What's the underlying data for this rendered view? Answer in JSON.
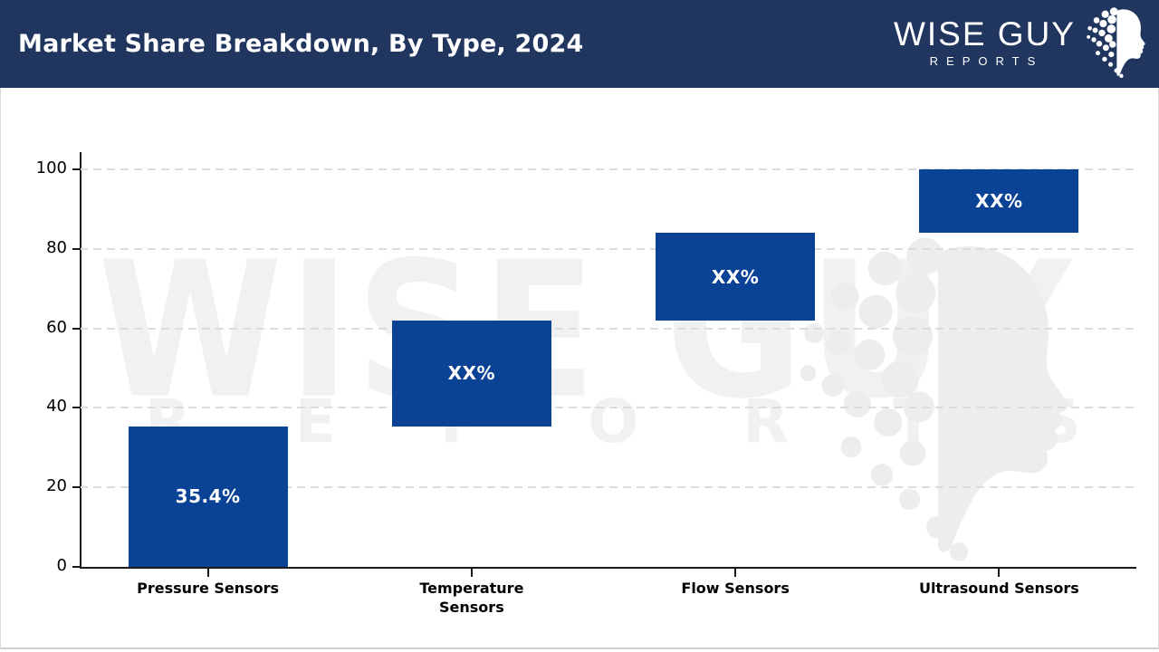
{
  "header": {
    "title": "Market Share Breakdown, By Type, 2024",
    "logo_line1": "WISE GUY",
    "logo_line2": "REPORTS"
  },
  "watermark": {
    "line1": "WISE GUY",
    "line2": "R E P O R T S"
  },
  "colors": {
    "header_bg": "#21365f",
    "bar": "#0a4296",
    "bar_label": "#ffffff",
    "grid": "#dcdcdc",
    "watermark": "#f1f1f1"
  },
  "chart_data": {
    "type": "bar",
    "subtype": "waterfall",
    "title": "Market Share Breakdown, By Type, 2024",
    "categories": [
      "Pressure Sensors",
      "Temperature\nSensors",
      "Flow Sensors",
      "Ultrasound Sensors"
    ],
    "segments": [
      {
        "category": "Pressure Sensors",
        "start": 0,
        "end": 35.4,
        "label": "35.4%"
      },
      {
        "category": "Temperature\nSensors",
        "start": 35.4,
        "end": 62,
        "label": "XX%"
      },
      {
        "category": "Flow Sensors",
        "start": 62,
        "end": 84,
        "label": "XX%"
      },
      {
        "category": "Ultrasound Sensors",
        "start": 84,
        "end": 100,
        "label": "XX%"
      }
    ],
    "ylim": [
      0,
      105
    ],
    "yticks": [
      0,
      20,
      40,
      60,
      80,
      100
    ],
    "xlabel": "",
    "ylabel": "",
    "grid": "horizontal-dashed",
    "legend": "none"
  }
}
